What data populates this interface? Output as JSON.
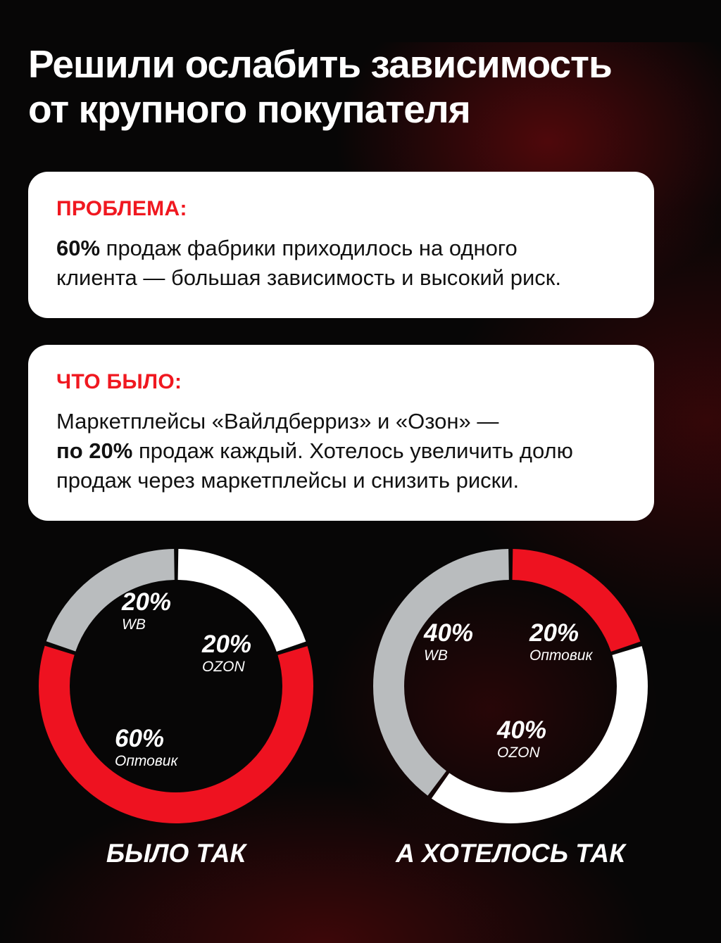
{
  "page": {
    "title": "Решили ослабить зависимость от крупного покупателя"
  },
  "cards": {
    "problem": {
      "heading": "ПРОБЛЕМА:",
      "highlight": "60%",
      "text": " продаж фабрики приходилось на одного клиента — большая зависимость и высокий риск."
    },
    "what_was": {
      "heading": "ЧТО БЫЛО:",
      "line1": "Маркетплейсы «Вайлдберриз» и «Озон» —",
      "highlight": "по 20%",
      "text": " продаж каждый. Хотелось увеличить долю продаж через маркетплейсы и снизить риски."
    }
  },
  "colors": {
    "accent_red": "#F01820",
    "segment_red": "#EE1220",
    "segment_gray": "#B9BCBE",
    "segment_white": "#FFFFFF",
    "card_bg": "#FFFFFF",
    "page_bg": "#070606",
    "text_dark": "#111111",
    "text_light": "#FFFFFF"
  },
  "chart_data": [
    {
      "type": "pie",
      "subtype": "donut",
      "caption": "БЫЛО ТАК",
      "legend_position": "inside",
      "start_angle_deg": 0,
      "direction": "clockwise",
      "segments": [
        {
          "label": "OZON",
          "pct": "20%",
          "value": 20,
          "color": "#FFFFFF"
        },
        {
          "label": "Оптовик",
          "pct": "60%",
          "value": 60,
          "color": "#EE1220"
        },
        {
          "label": "WB",
          "pct": "20%",
          "value": 20,
          "color": "#B9BCBE"
        }
      ]
    },
    {
      "type": "pie",
      "subtype": "donut",
      "caption": "А ХОТЕЛОСЬ ТАК",
      "legend_position": "inside",
      "start_angle_deg": 0,
      "direction": "clockwise",
      "segments": [
        {
          "label": "Оптовик",
          "pct": "20%",
          "value": 20,
          "color": "#EE1220"
        },
        {
          "label": "OZON",
          "pct": "40%",
          "value": 40,
          "color": "#FFFFFF"
        },
        {
          "label": "WB",
          "pct": "40%",
          "value": 40,
          "color": "#B9BCBE"
        }
      ]
    }
  ]
}
